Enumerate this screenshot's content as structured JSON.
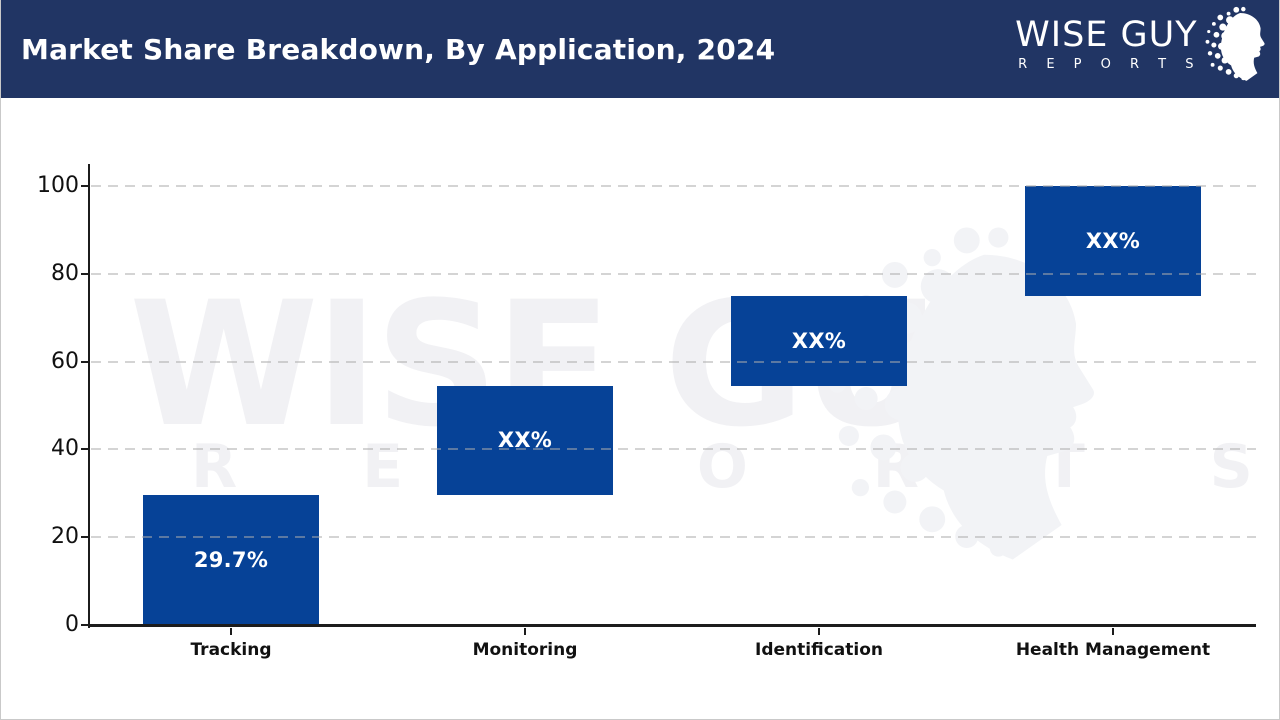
{
  "header": {
    "title": "Market Share Breakdown, By Application, 2024",
    "logo": {
      "name": "WISE GUY",
      "sub": "R E P O R T S"
    }
  },
  "watermark": {
    "name": "WISE GUY",
    "sub": "R E P O R T S"
  },
  "chart_data": {
    "type": "bar",
    "variant": "waterfall",
    "title": "Market Share Breakdown, By Application, 2024",
    "categories": [
      "Tracking",
      "Monitoring",
      "Identification",
      "Health Management"
    ],
    "segments": [
      {
        "category": "Tracking",
        "start": 0,
        "end": 29.7,
        "label": "29.7%"
      },
      {
        "category": "Monitoring",
        "start": 29.7,
        "end": 54.4,
        "label": "XX%"
      },
      {
        "category": "Identification",
        "start": 54.4,
        "end": 75,
        "label": "XX%"
      },
      {
        "category": "Health Management",
        "start": 75,
        "end": 100,
        "label": "XX%"
      }
    ],
    "yticks": [
      "0",
      "20",
      "40",
      "60",
      "80",
      "100"
    ],
    "ytick_values": [
      0,
      20,
      40,
      60,
      80,
      100
    ],
    "ylim": [
      0,
      105
    ],
    "xlabel": "",
    "ylabel": "",
    "grid": "horizontal-dashed",
    "legend": "none",
    "colors": {
      "bar": "#064297",
      "header_bg": "#213564",
      "grid": "#bdbdbd",
      "axis": "#1c1c1c",
      "watermark": "#f1f1f4",
      "title_text": "#ffffff",
      "tick_text": "#111111"
    }
  }
}
